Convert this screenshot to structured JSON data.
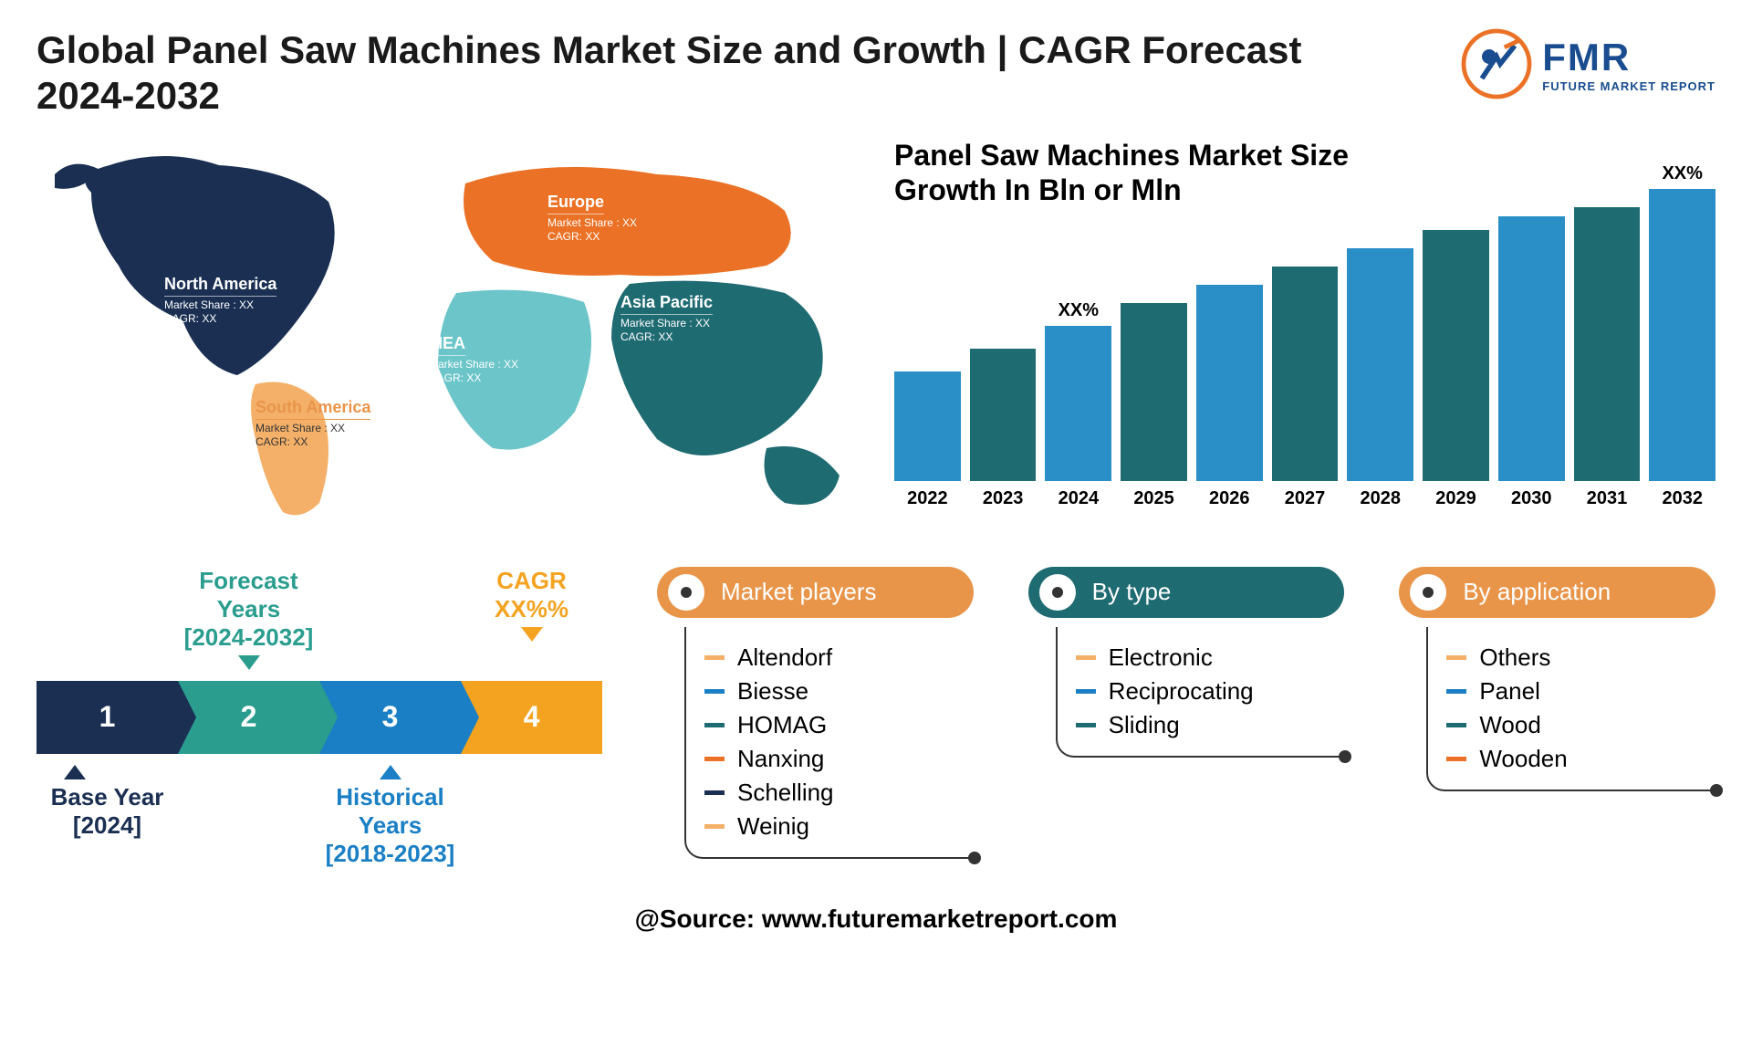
{
  "title": "Global Panel Saw Machines Market Size and Growth | CAGR Forecast 2024-2032",
  "logo": {
    "fmr": "FMR",
    "sub": "FUTURE MARKET REPORT"
  },
  "regions": {
    "north_america": {
      "name": "North America",
      "share": "Market Share : XX",
      "cagr": "CAGR: XX",
      "color": "#1a2f52"
    },
    "south_america": {
      "name": "South America",
      "share": "Market Share : XX",
      "cagr": "CAGR: XX",
      "color": "#f4b068"
    },
    "europe": {
      "name": "Europe",
      "share": "Market Share : XX",
      "cagr": "CAGR: XX",
      "color": "#ea7125"
    },
    "mea": {
      "name": "MEA",
      "share": "Market Share : XX",
      "cagr": "CAGR: XX",
      "color": "#6bc5c9"
    },
    "asia_pacific": {
      "name": "Asia Pacific",
      "share": "Market Share : XX",
      "cagr": "CAGR: XX",
      "color": "#1f6b72"
    }
  },
  "chart": {
    "title": "Panel Saw Machines Market Size Growth In Bln or Mln",
    "years": [
      "2022",
      "2023",
      "2024",
      "2025",
      "2026",
      "2027",
      "2028",
      "2029",
      "2030",
      "2031",
      "2032"
    ],
    "heights": [
      120,
      145,
      170,
      195,
      215,
      235,
      255,
      275,
      290,
      300,
      320
    ],
    "colors": [
      "#2a8fc7",
      "#1f6b72",
      "#2a8fc7",
      "#1f6b72",
      "#2a8fc7",
      "#1f6b72",
      "#2a8fc7",
      "#1f6b72",
      "#2a8fc7",
      "#1f6b72",
      "#2a8fc7"
    ],
    "annotations": {
      "2": "XX%",
      "10": "XX%"
    },
    "label_fontsize": 20
  },
  "timeline": {
    "forecast": {
      "label": "Forecast Years",
      "range": "[2024-2032]",
      "color": "#2a9d8f"
    },
    "cagr": {
      "label": "CAGR",
      "value": "XX%%",
      "color": "#f4a321"
    },
    "base": {
      "label": "Base Year",
      "range": "[2024]",
      "color": "#1a2f52"
    },
    "historical": {
      "label": "Historical Years",
      "range": "[2018-2023]",
      "color": "#1a7fc4"
    },
    "segments": [
      {
        "num": "1",
        "color": "#1a2f52"
      },
      {
        "num": "2",
        "color": "#2a9d8f"
      },
      {
        "num": "3",
        "color": "#1a7fc4"
      },
      {
        "num": "4",
        "color": "#f4a321"
      }
    ]
  },
  "categories": {
    "market_players": {
      "title": "Market players",
      "header_bg": "#e8954a",
      "items": [
        {
          "label": "Altendorf",
          "color": "#f4b068"
        },
        {
          "label": "Biesse",
          "color": "#1a7fc4"
        },
        {
          "label": "HOMAG",
          "color": "#1f6b72"
        },
        {
          "label": "Nanxing",
          "color": "#ea7125"
        },
        {
          "label": "Schelling",
          "color": "#1a2f52"
        },
        {
          "label": "Weinig",
          "color": "#f4b068"
        }
      ]
    },
    "by_type": {
      "title": "By type",
      "header_bg": "#1f6b72",
      "items": [
        {
          "label": "Electronic",
          "color": "#f4b068"
        },
        {
          "label": "Reciprocating",
          "color": "#1a7fc4"
        },
        {
          "label": "Sliding",
          "color": "#1f6b72"
        }
      ]
    },
    "by_application": {
      "title": "By application",
      "header_bg": "#e8954a",
      "items": [
        {
          "label": "Others",
          "color": "#f4b068"
        },
        {
          "label": "Panel",
          "color": "#1a7fc4"
        },
        {
          "label": "Wood",
          "color": "#1f6b72"
        },
        {
          "label": "Wooden",
          "color": "#ea7125"
        }
      ]
    }
  },
  "source": "@Source: www.futuremarketreport.com"
}
